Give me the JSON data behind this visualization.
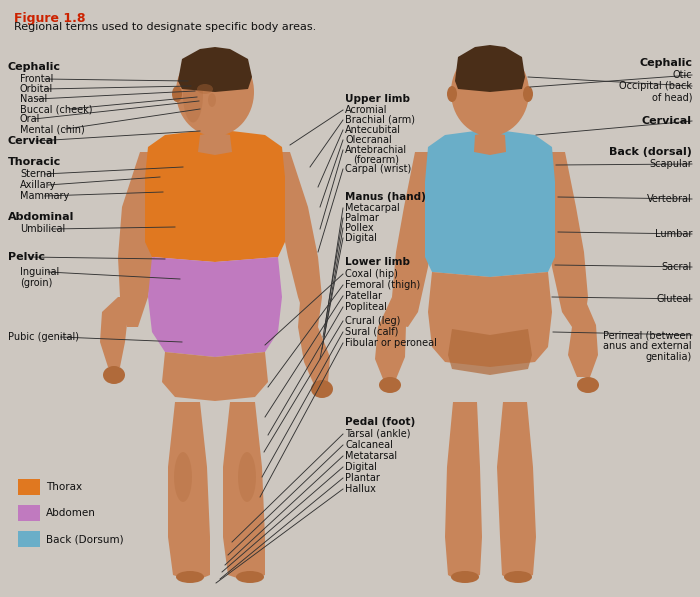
{
  "title": "Figure 1.8",
  "subtitle": "Regional terms used to designate specific body areas.",
  "bg_color": "#cdc7c0",
  "title_color": "#cc2200",
  "text_color": "#111111",
  "skin": "#c8855a",
  "skin_shadow": "#b06a3a",
  "skin_light": "#d4956a",
  "hair": "#4a2e18",
  "orange": "#e07820",
  "purple": "#c07abf",
  "blue_back": "#6aaec8",
  "legend": [
    {
      "label": "Thorax",
      "color": "#e07820"
    },
    {
      "label": "Abdomen",
      "color": "#c07abf"
    },
    {
      "label": "Back (Dorsum)",
      "color": "#6aaec8"
    }
  ]
}
